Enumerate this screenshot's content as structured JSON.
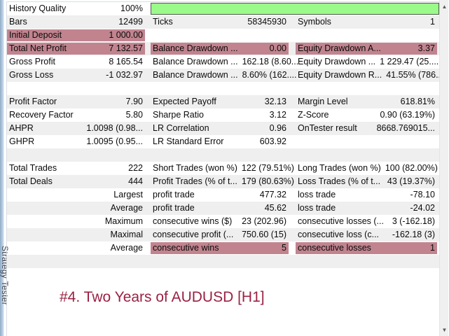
{
  "panel": {
    "title": "#4. Two Years of AUDUSD [H1]",
    "left_tab": {
      "label": "Strategy Tester"
    },
    "colors": {
      "highlight": "#c1848f",
      "stripe": "#efefef",
      "bar_fill": "#9afb8a",
      "bar_border": "#4c5a4c",
      "title_color": "#9a2143"
    },
    "history_quality_bar": {
      "percent": 100
    }
  },
  "scrollbar": {
    "up_glyph": "▲",
    "down_glyph": "▼"
  },
  "table": {
    "rows": [
      {
        "bar": true,
        "cells": [
          {
            "l": "History Quality",
            "v": "100%"
          },
          null,
          null
        ]
      },
      {
        "cells": [
          {
            "l": "Bars",
            "v": "12499"
          },
          {
            "l": "Ticks",
            "v": "58345930"
          },
          {
            "l": "Symbols",
            "v": "1"
          }
        ]
      },
      {
        "cells": [
          {
            "l": "Initial Deposit",
            "v": "1 000.00",
            "hl": true
          },
          null,
          null
        ]
      },
      {
        "cells": [
          {
            "l": "Total Net Profit",
            "v": "7 132.57",
            "hl": true
          },
          {
            "l": "Balance Drawdown ...",
            "v": "0.00",
            "hl": true
          },
          {
            "l": "Equity Drawdown A...",
            "v": "3.37",
            "hl": true
          }
        ]
      },
      {
        "cells": [
          {
            "l": "Gross Profit",
            "v": "8 165.54"
          },
          {
            "l": "Balance Drawdown ...",
            "v": "162.18 (8.60..."
          },
          {
            "l": "Equity Drawdown ...",
            "v": "1 229.47 (25...."
          }
        ]
      },
      {
        "cells": [
          {
            "l": "Gross Loss",
            "v": "-1 032.97"
          },
          {
            "l": "Balance Drawdown ...",
            "v": "8.60% (162...."
          },
          {
            "l": "Equity Drawdown R...",
            "v": "41.55% (786...."
          }
        ]
      },
      {
        "cells": []
      },
      {
        "cells": [
          {
            "l": "Profit Factor",
            "v": "7.90"
          },
          {
            "l": "Expected Payoff",
            "v": "32.13"
          },
          {
            "l": "Margin Level",
            "v": "618.81%"
          }
        ]
      },
      {
        "cells": [
          {
            "l": "Recovery Factor",
            "v": "5.80"
          },
          {
            "l": "Sharpe Ratio",
            "v": "3.12"
          },
          {
            "l": "Z-Score",
            "v": "0.90 (63.19%)"
          }
        ]
      },
      {
        "cells": [
          {
            "l": "AHPR",
            "v": "1.0098 (0.98..."
          },
          {
            "l": "LR Correlation",
            "v": "0.96"
          },
          {
            "l": "OnTester result",
            "v": "8668.769015..."
          }
        ]
      },
      {
        "cells": [
          {
            "l": "GHPR",
            "v": "1.0095 (0.95..."
          },
          {
            "l": "LR Standard Error",
            "v": "603.92"
          },
          null
        ]
      },
      {
        "cells": []
      },
      {
        "cells": [
          {
            "l": "Total Trades",
            "v": "222"
          },
          {
            "l": "Short Trades (won %)",
            "v": "122 (79.51%)"
          },
          {
            "l": "Long Trades (won %)",
            "v": "100 (82.00%)"
          }
        ]
      },
      {
        "cells": [
          {
            "l": "Total Deals",
            "v": "444"
          },
          {
            "l": "Profit Trades (% of t...",
            "v": "179 (80.63%)"
          },
          {
            "l": "Loss Trades (% of t...",
            "v": "43 (19.37%)"
          }
        ]
      },
      {
        "cells": [
          {
            "l": "",
            "v": "Largest"
          },
          {
            "l": "profit trade",
            "v": "477.32"
          },
          {
            "l": "loss trade",
            "v": "-78.10"
          }
        ]
      },
      {
        "cells": [
          {
            "l": "",
            "v": "Average"
          },
          {
            "l": "profit trade",
            "v": "45.62"
          },
          {
            "l": "loss trade",
            "v": "-24.02"
          }
        ]
      },
      {
        "cells": [
          {
            "l": "",
            "v": "Maximum"
          },
          {
            "l": "consecutive wins ($)",
            "v": "23 (202.96)"
          },
          {
            "l": "consecutive losses (...",
            "v": "3 (-162.18)"
          }
        ]
      },
      {
        "cells": [
          {
            "l": "",
            "v": "Maximal"
          },
          {
            "l": "consecutive profit (...",
            "v": "750.60 (15)"
          },
          {
            "l": "consecutive loss (c...",
            "v": "-162.18 (3)"
          }
        ]
      },
      {
        "cells": [
          {
            "l": "",
            "v": "Average"
          },
          {
            "l": "consecutive wins",
            "v": "5",
            "hl": true
          },
          {
            "l": "consecutive losses",
            "v": "1",
            "hl": true
          }
        ]
      },
      {
        "cells": []
      }
    ]
  }
}
